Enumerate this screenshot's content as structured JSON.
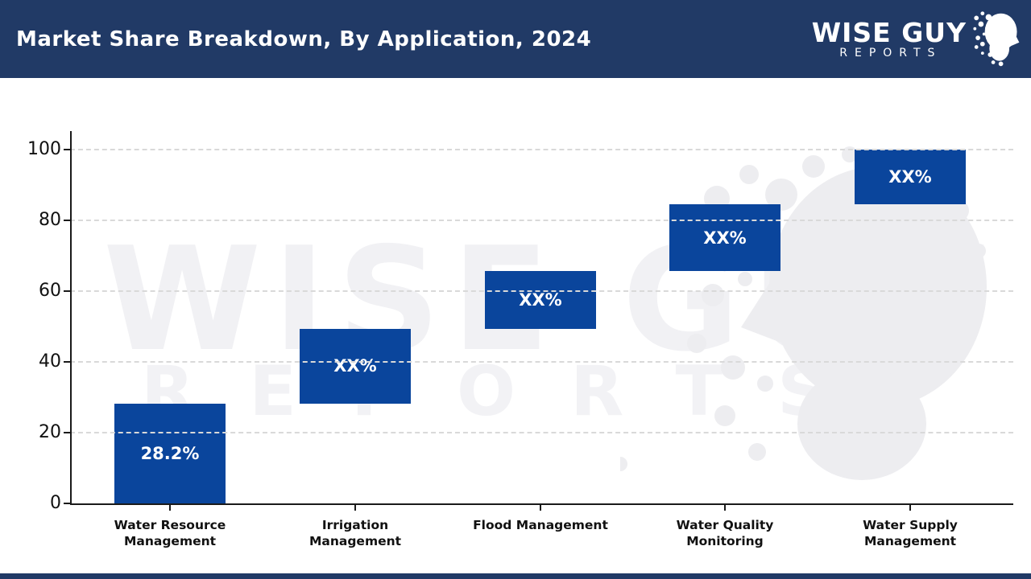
{
  "header": {
    "title": "Market Share Breakdown, By Application, 2024",
    "logo_line1": "WISE GUY",
    "logo_line2": "REPORTS"
  },
  "watermark": {
    "line1": "WISE GUY",
    "line2": "REPORTS"
  },
  "chart_data": {
    "type": "waterfall",
    "title": "Market Share Breakdown, By Application, 2024",
    "categories": [
      "Water Resource Management",
      "Irrigation Management",
      "Flood Management",
      "Water Quality Monitoring",
      "Water Supply Management"
    ],
    "category_lines": [
      [
        "Water Resource",
        "Management"
      ],
      [
        "Irrigation",
        "Management"
      ],
      [
        "Flood Management"
      ],
      [
        "Water Quality",
        "Monitoring"
      ],
      [
        "Water Supply",
        "Management"
      ]
    ],
    "segments": [
      {
        "category": "Water Resource Management",
        "start": 0,
        "end": 28.2,
        "label": "28.2%"
      },
      {
        "category": "Irrigation Management",
        "start": 28.2,
        "end": 49.3,
        "label": "XX%"
      },
      {
        "category": "Flood Management",
        "start": 49.3,
        "end": 65.6,
        "label": "XX%"
      },
      {
        "category": "Water Quality Monitoring",
        "start": 65.6,
        "end": 84.6,
        "label": "XX%"
      },
      {
        "category": "Water Supply Management",
        "start": 84.6,
        "end": 100,
        "label": "XX%"
      }
    ],
    "ylim": [
      0,
      100
    ],
    "yticks": [
      0,
      20,
      40,
      60,
      80,
      100
    ],
    "grid": true,
    "legend": "none",
    "bar_color": "#0a459c",
    "bar_label_color": "#ffffff",
    "axis_color": "#1a1a1a",
    "gridline_color": "#d9d9d9"
  },
  "colors": {
    "header_bg": "#213a66",
    "footer_bg": "#213a66",
    "watermark_color": "#f1f1f4"
  }
}
